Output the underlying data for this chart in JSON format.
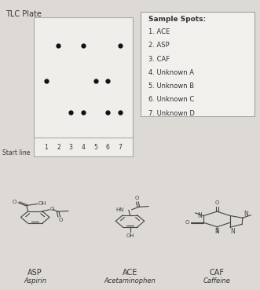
{
  "bg_color": "#ddd9d4",
  "plate_bg": "#f0eeeb",
  "plate_border_color": "#aaaaaa",
  "title": "TLC Plate",
  "startline_label": "Start line",
  "lane_labels": [
    "1",
    "2",
    "3",
    "4",
    "5",
    "6",
    "7"
  ],
  "spot_color": "#111111",
  "spots": [
    {
      "lane": 2,
      "row": 3
    },
    {
      "lane": 4,
      "row": 3
    },
    {
      "lane": 7,
      "row": 3
    },
    {
      "lane": 1,
      "row": 2
    },
    {
      "lane": 5,
      "row": 2
    },
    {
      "lane": 6,
      "row": 2
    },
    {
      "lane": 3,
      "row": 1
    },
    {
      "lane": 4,
      "row": 1
    },
    {
      "lane": 6,
      "row": 1
    },
    {
      "lane": 7,
      "row": 1
    }
  ],
  "legend_title": "Sample Spots:",
  "legend_items": [
    "1. ACE",
    "2. ASP",
    "3. CAF",
    "4. Unknown A",
    "5. Unknown B",
    "6. Unknown C",
    "7. Unknown D"
  ],
  "line_color": "#444444",
  "text_color": "#333333",
  "lw": 0.8
}
